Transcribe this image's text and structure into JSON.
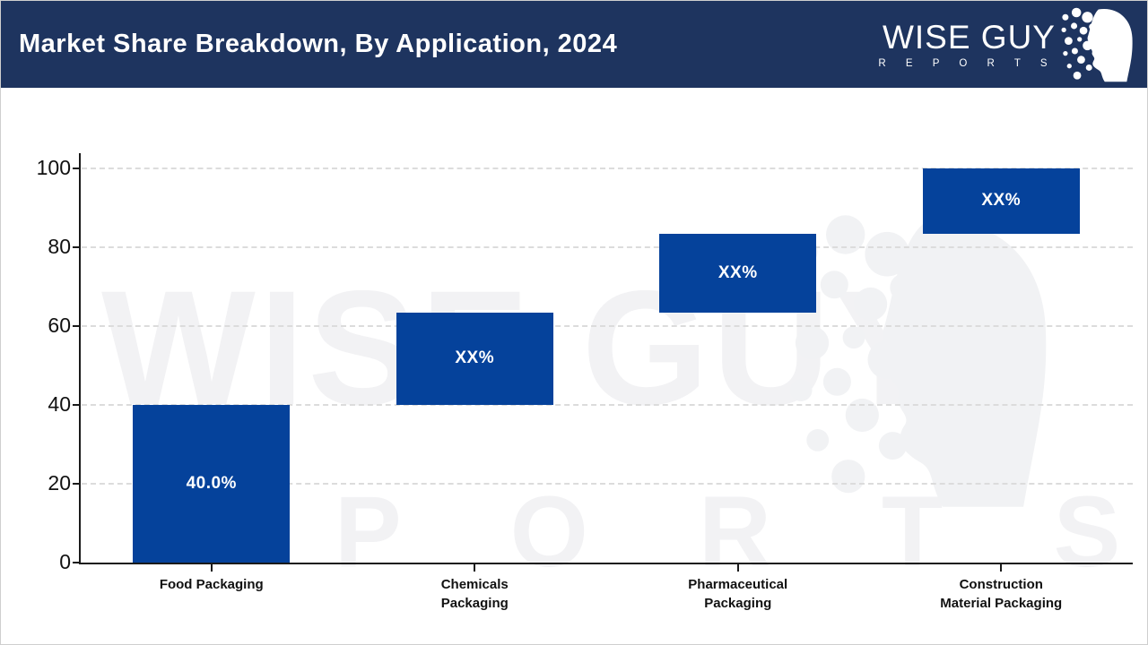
{
  "header": {
    "title": "Market Share Breakdown, By Application, 2024",
    "logo": {
      "brand": "WISE GUY",
      "sub": "R E P O R T S"
    }
  },
  "watermark": {
    "line1": "WISE GUY",
    "line2": "P O R T S"
  },
  "colors": {
    "header_bg": "#1e345f",
    "bar_blue": "#05429b",
    "watermark_gray": "#f2f2f4",
    "gridline_gray": "#dcdcdc"
  },
  "chart_data": {
    "type": "bar",
    "variant": "floating-stacked-percent",
    "title": "Market Share Breakdown, By Application, 2024",
    "categories": [
      "Food Packaging",
      "Chemicals Packaging",
      "Pharmaceutical Packaging",
      "Construction Material Packaging"
    ],
    "tick_labels": [
      "Food Packaging",
      "Chemicals\nPackaging",
      "Pharmaceutical\nPackaging",
      "Construction\nMaterial Packaging"
    ],
    "segments": [
      {
        "category": "Food Packaging",
        "start": 0,
        "end": 40,
        "value": 40.0,
        "label": "40.0%"
      },
      {
        "category": "Chemicals Packaging",
        "start": 40,
        "end": 63.5,
        "value": 23.5,
        "label": "XX%"
      },
      {
        "category": "Pharmaceutical Packaging",
        "start": 63.5,
        "end": 83.5,
        "value": 20.0,
        "label": "XX%"
      },
      {
        "category": "Construction Material Packaging",
        "start": 83.5,
        "end": 100,
        "value": 16.5,
        "label": "XX%"
      }
    ],
    "ylim": [
      0,
      100
    ],
    "yticks": [
      0,
      20,
      40,
      60,
      80,
      100
    ],
    "xlabel": "",
    "ylabel": "",
    "grid": "horizontal-dashed",
    "legend": "none",
    "bar_color": "#05429b"
  }
}
